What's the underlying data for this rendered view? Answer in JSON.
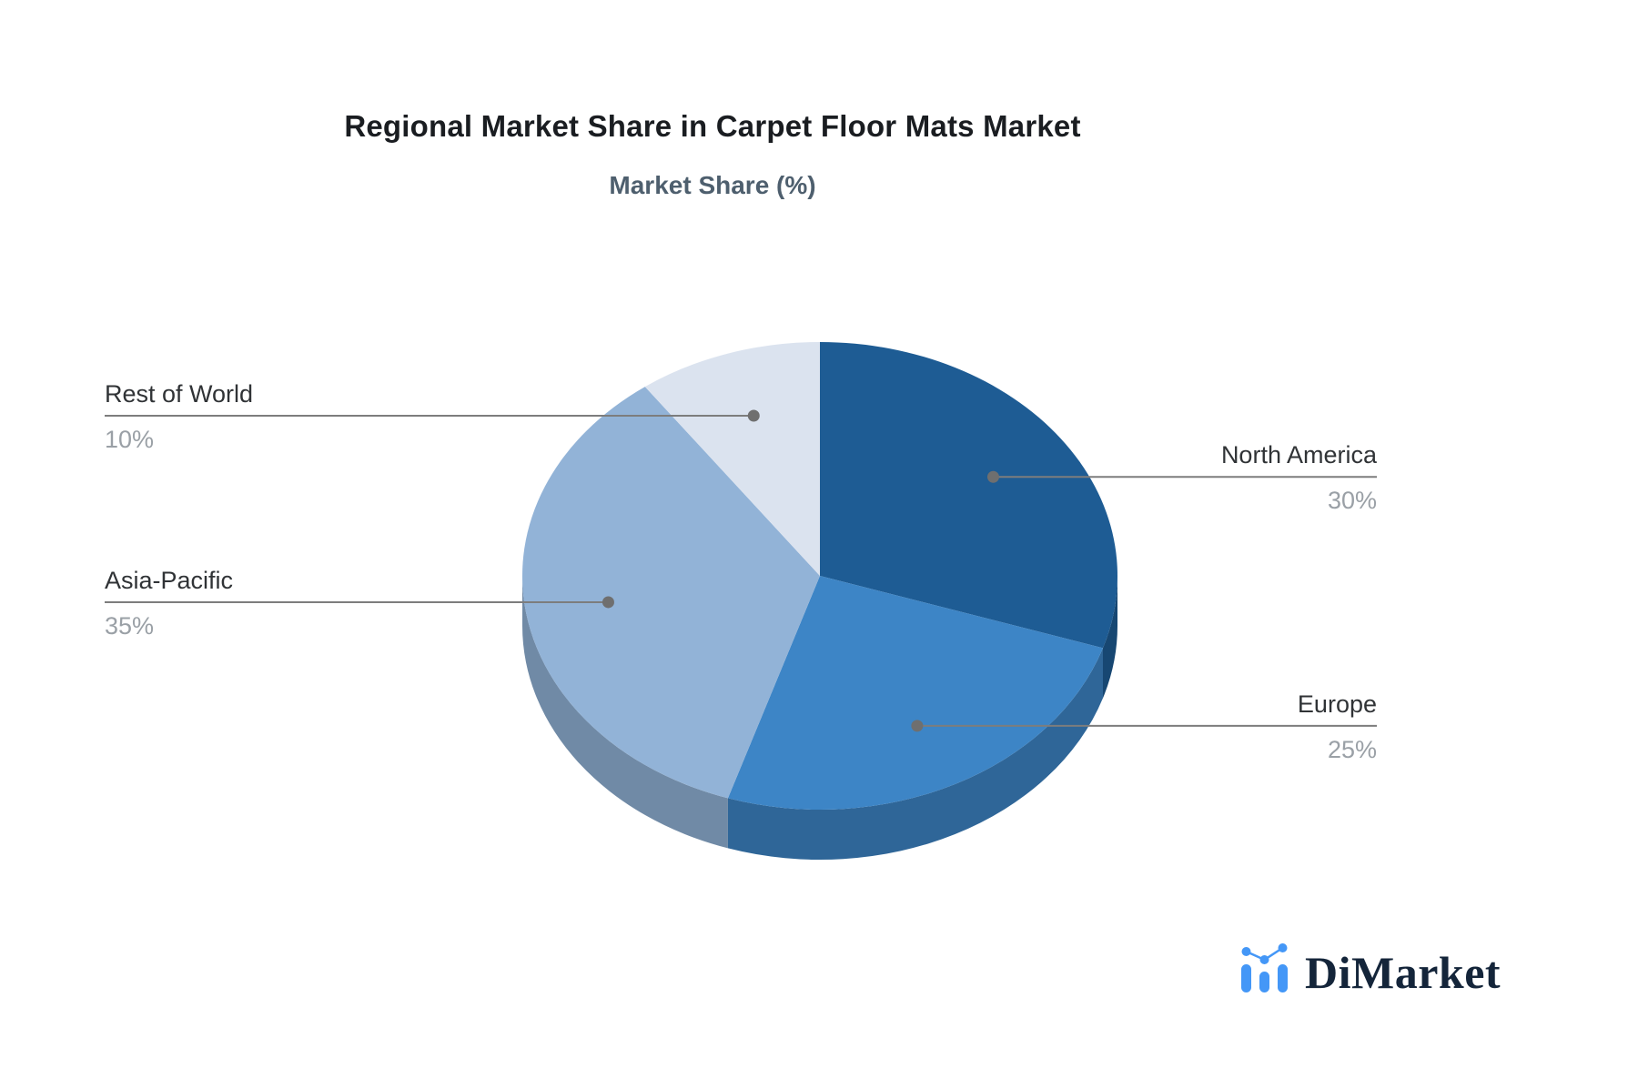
{
  "title": "Regional Market Share in Carpet Floor Mats Market",
  "subtitle": "Market Share (%)",
  "brand": {
    "name": "DiMarket"
  },
  "chart_data": {
    "type": "pie",
    "title": "Regional Market Share in Carpet Floor Mats Market",
    "subtitle": "Market Share (%)",
    "unit": "%",
    "direction": "clockwise",
    "start_angle_deg_from_top": 0,
    "effect_3d": true,
    "legend_position": "callout-labels",
    "colors": {
      "leader_line": "#7d7d7d",
      "label_text": "#303336",
      "value_text": "#9aa0a6"
    },
    "slices": [
      {
        "label": "North America",
        "value": 30,
        "display": "30%",
        "color": "#1E5C94",
        "label_side": "right"
      },
      {
        "label": "Europe",
        "value": 25,
        "display": "25%",
        "color": "#3D85C6",
        "label_side": "right"
      },
      {
        "label": "Asia-Pacific",
        "value": 35,
        "display": "35%",
        "color": "#92B3D7",
        "label_side": "left"
      },
      {
        "label": "Rest of World",
        "value": 10,
        "display": "10%",
        "color": "#DBE3EF",
        "label_side": "left"
      }
    ]
  }
}
